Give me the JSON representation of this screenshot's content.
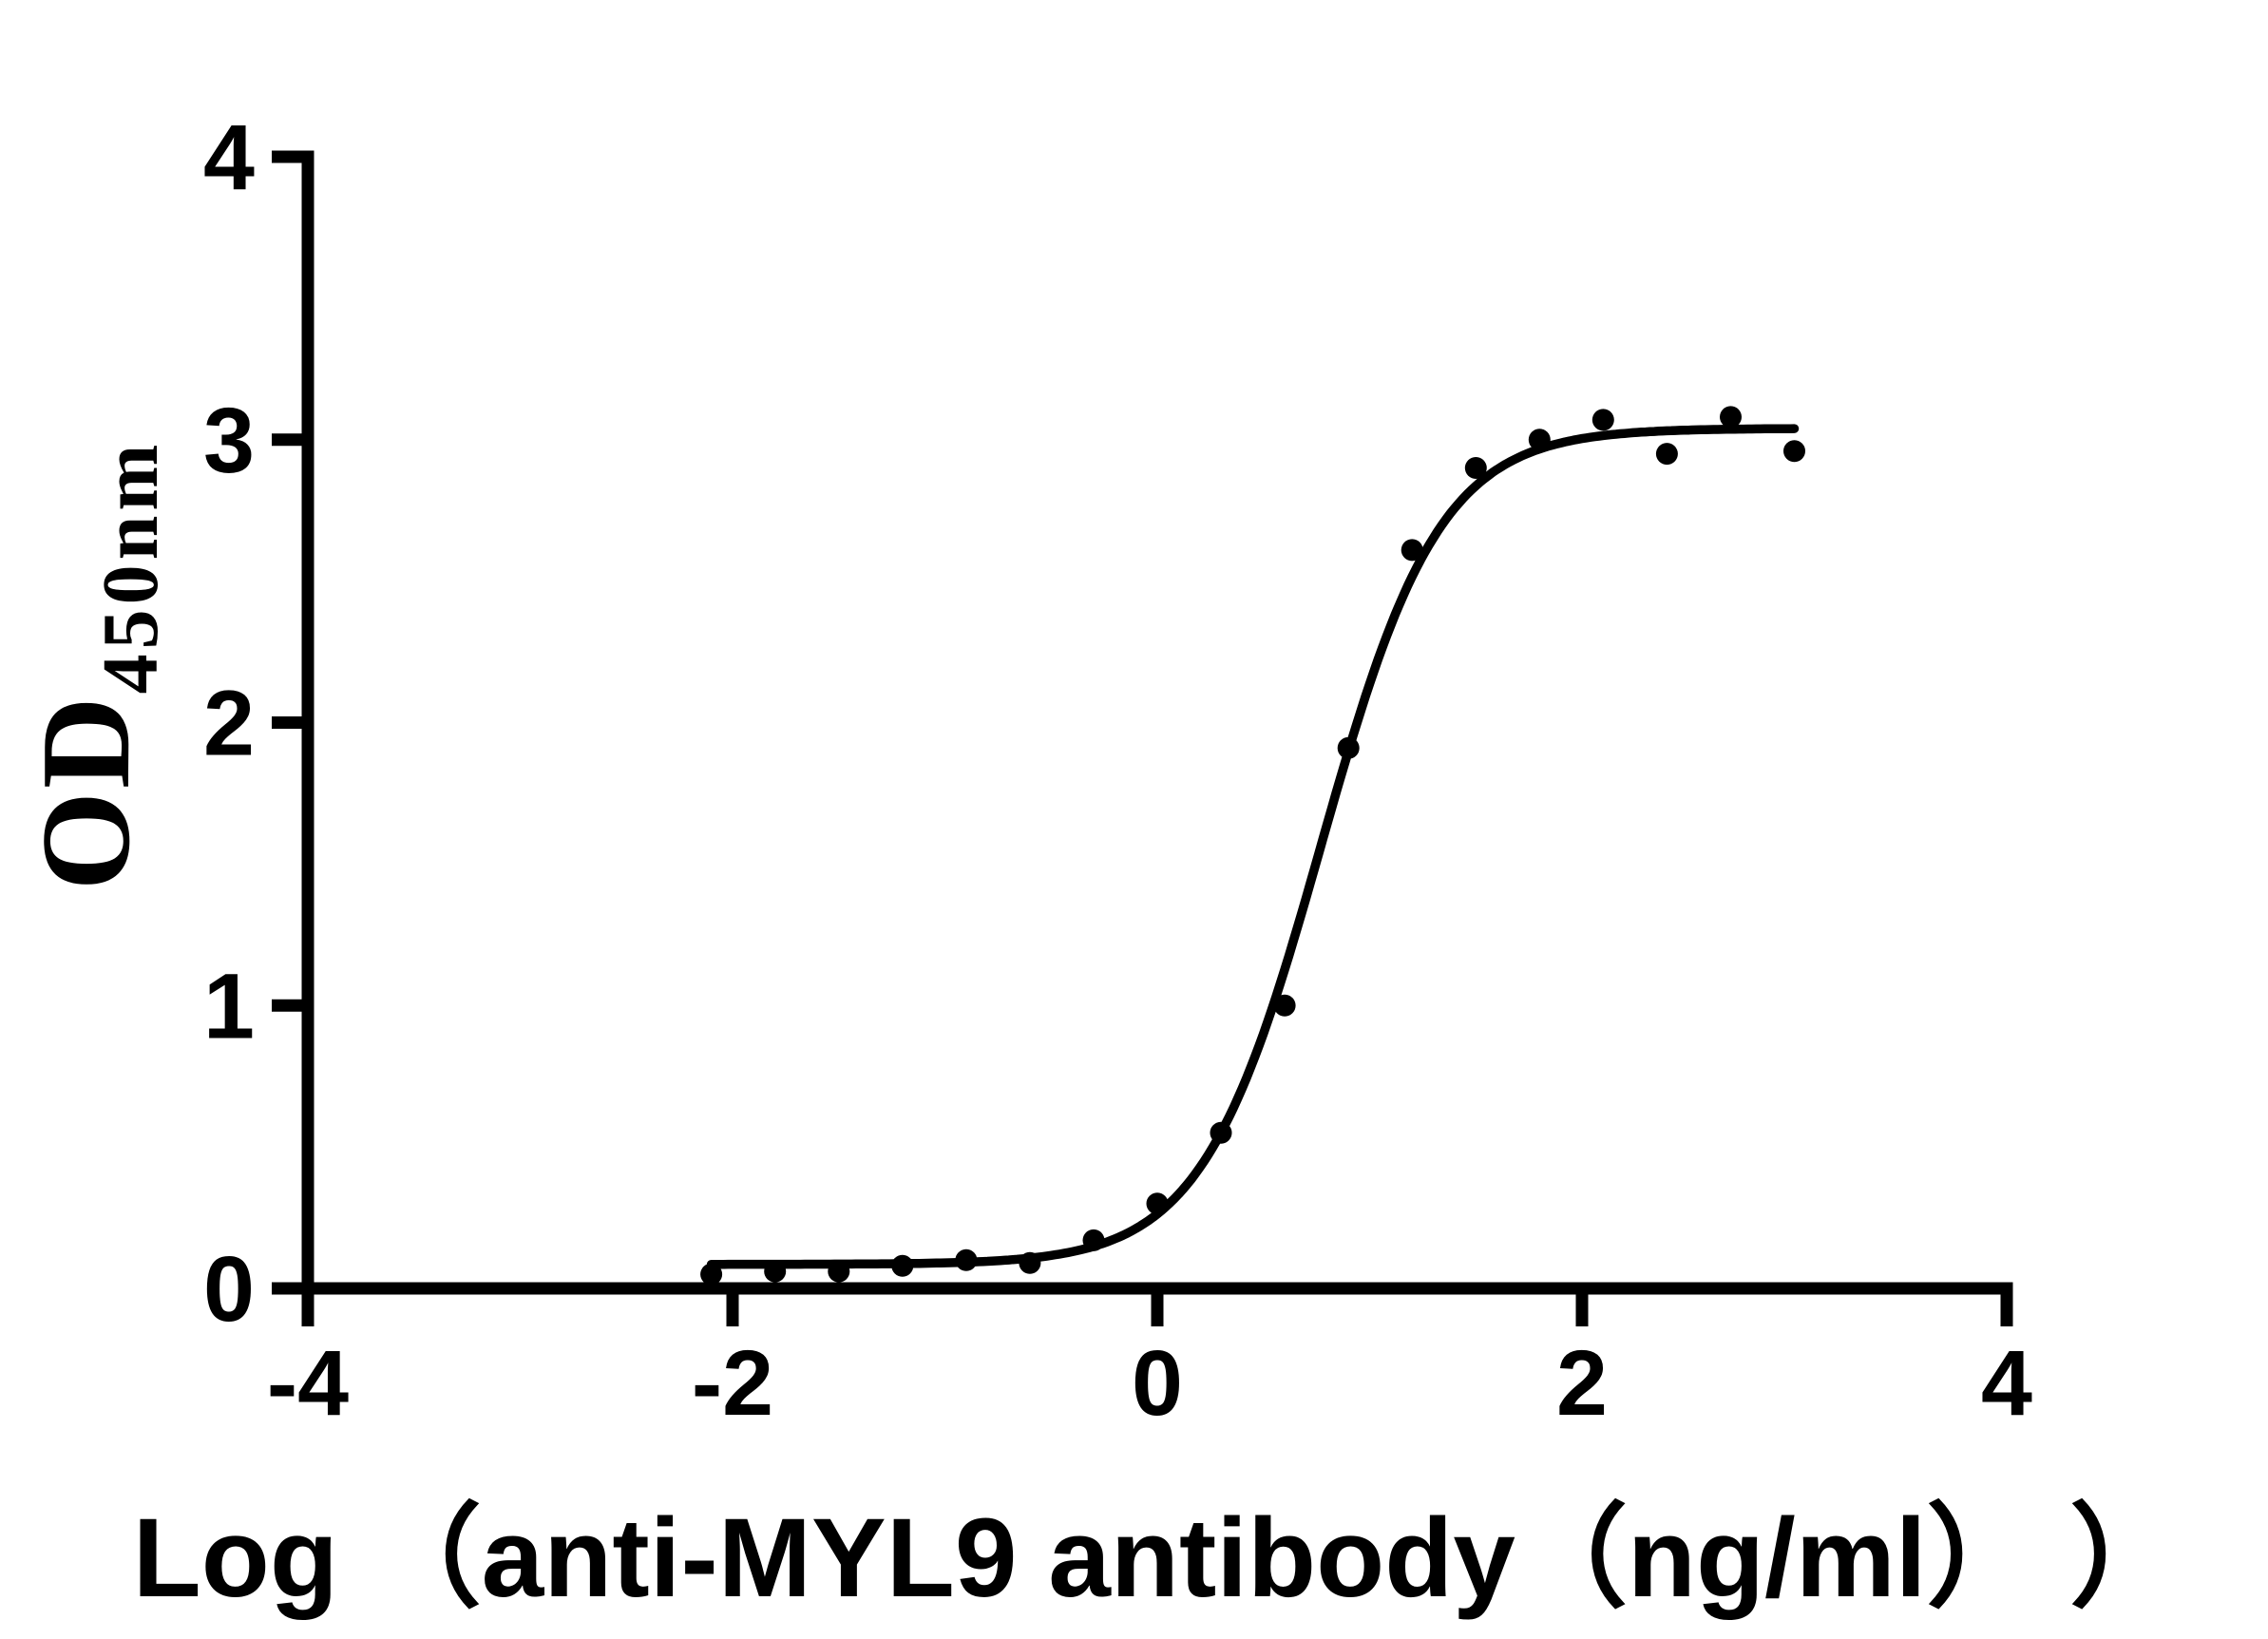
{
  "figure": {
    "background_color": "#ffffff"
  },
  "chart_data": {
    "type": "scatter",
    "title": "",
    "xlabel": "Log （anti-MYL9 antibody（ng/ml） ）",
    "ylabel_main": "OD",
    "ylabel_sub": "450nm",
    "xlim": [
      -4,
      4
    ],
    "ylim": [
      0,
      4
    ],
    "x_ticks": [
      -4,
      -2,
      0,
      2,
      4
    ],
    "y_ticks": [
      0,
      1,
      2,
      3,
      4
    ],
    "grid": false,
    "legend": "none",
    "axis_color": "#000000",
    "marker_color": "#000000",
    "curve_color": "#000000",
    "points": [
      [
        -2.1,
        0.05
      ],
      [
        -1.8,
        0.06
      ],
      [
        -1.5,
        0.06
      ],
      [
        -1.2,
        0.08
      ],
      [
        -0.9,
        0.1
      ],
      [
        -0.6,
        0.09
      ],
      [
        -0.3,
        0.17
      ],
      [
        0.0,
        0.3
      ],
      [
        0.3,
        0.55
      ],
      [
        0.6,
        1.0
      ],
      [
        0.9,
        1.91
      ],
      [
        1.2,
        2.61
      ],
      [
        1.5,
        2.9
      ],
      [
        1.8,
        3.0
      ],
      [
        2.1,
        3.07
      ],
      [
        2.4,
        2.95
      ],
      [
        2.7,
        3.08
      ],
      [
        3.0,
        2.96
      ]
    ],
    "curve_fit": {
      "model": "4PL",
      "bottom": 0.085,
      "top": 3.04,
      "logEC50": 0.77,
      "hillslope": 1.55,
      "x_start": -2.1,
      "x_end": 3.0
    }
  }
}
